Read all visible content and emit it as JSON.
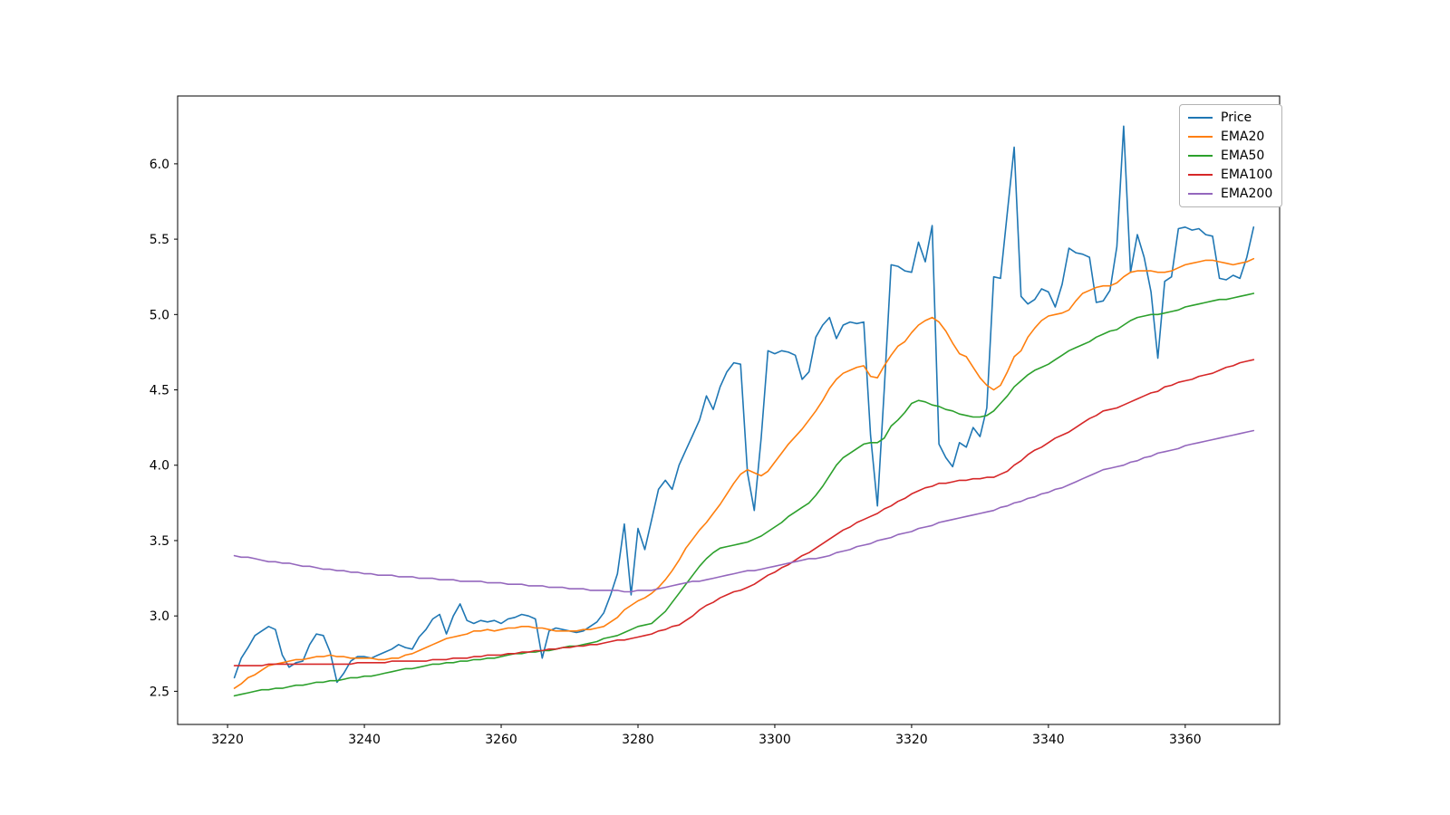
{
  "figure": {
    "background": "#ffffff",
    "frame_color": "#000000"
  },
  "chart_data": {
    "type": "line",
    "title": "",
    "xlabel": "",
    "ylabel": "",
    "grid": false,
    "legend_position": "upper right",
    "xlim": [
      3212.7,
      3373.8
    ],
    "ylim": [
      2.28,
      6.45
    ],
    "x_ticks": [
      3220,
      3240,
      3260,
      3280,
      3300,
      3320,
      3340,
      3360
    ],
    "y_ticks": [
      2.5,
      3.0,
      3.5,
      4.0,
      4.5,
      5.0,
      5.5,
      6.0
    ],
    "x_start": 3221,
    "x_step": 1,
    "series": [
      {
        "name": "Price",
        "color": "#1f77b4",
        "values": [
          2.59,
          2.72,
          2.79,
          2.87,
          2.9,
          2.93,
          2.91,
          2.74,
          2.66,
          2.69,
          2.7,
          2.81,
          2.88,
          2.87,
          2.76,
          2.56,
          2.62,
          2.7,
          2.73,
          2.73,
          2.72,
          2.74,
          2.76,
          2.78,
          2.81,
          2.79,
          2.78,
          2.86,
          2.91,
          2.98,
          3.01,
          2.88,
          3.0,
          3.08,
          2.97,
          2.95,
          2.97,
          2.96,
          2.97,
          2.95,
          2.98,
          2.99,
          3.01,
          3.0,
          2.98,
          2.72,
          2.9,
          2.92,
          2.91,
          2.9,
          2.89,
          2.9,
          2.93,
          2.96,
          3.02,
          3.14,
          3.28,
          3.61,
          3.14,
          3.58,
          3.44,
          3.64,
          3.84,
          3.9,
          3.84,
          4.0,
          4.1,
          4.2,
          4.3,
          4.46,
          4.37,
          4.52,
          4.62,
          4.68,
          4.67,
          3.95,
          3.7,
          4.18,
          4.76,
          4.74,
          4.76,
          4.75,
          4.73,
          4.57,
          4.62,
          4.85,
          4.93,
          4.98,
          4.84,
          4.93,
          4.95,
          4.94,
          4.95,
          4.2,
          3.73,
          4.5,
          5.33,
          5.32,
          5.29,
          5.28,
          5.48,
          5.35,
          5.59,
          4.14,
          4.05,
          3.99,
          4.15,
          4.12,
          4.25,
          4.19,
          4.38,
          5.25,
          5.24,
          5.68,
          6.11,
          5.12,
          5.07,
          5.1,
          5.17,
          5.15,
          5.05,
          5.2,
          5.44,
          5.41,
          5.4,
          5.38,
          5.08,
          5.09,
          5.16,
          5.45,
          6.25,
          5.28,
          5.53,
          5.38,
          5.15,
          4.71,
          5.22,
          5.25,
          5.57,
          5.58,
          5.56,
          5.57,
          5.53,
          5.52,
          5.24,
          5.23,
          5.26,
          5.24,
          5.38,
          5.58
        ]
      },
      {
        "name": "EMA20",
        "color": "#ff7f0e",
        "values": [
          2.52,
          2.55,
          2.59,
          2.61,
          2.64,
          2.67,
          2.68,
          2.69,
          2.7,
          2.71,
          2.71,
          2.72,
          2.73,
          2.73,
          2.74,
          2.73,
          2.73,
          2.72,
          2.72,
          2.72,
          2.72,
          2.71,
          2.71,
          2.72,
          2.72,
          2.74,
          2.75,
          2.77,
          2.79,
          2.81,
          2.83,
          2.85,
          2.86,
          2.87,
          2.88,
          2.9,
          2.9,
          2.91,
          2.9,
          2.91,
          2.92,
          2.92,
          2.93,
          2.93,
          2.92,
          2.92,
          2.91,
          2.9,
          2.9,
          2.9,
          2.9,
          2.91,
          2.91,
          2.92,
          2.93,
          2.96,
          2.99,
          3.04,
          3.07,
          3.1,
          3.12,
          3.15,
          3.19,
          3.24,
          3.3,
          3.37,
          3.45,
          3.51,
          3.57,
          3.62,
          3.68,
          3.74,
          3.81,
          3.88,
          3.94,
          3.97,
          3.95,
          3.93,
          3.96,
          4.02,
          4.08,
          4.14,
          4.19,
          4.24,
          4.3,
          4.36,
          4.43,
          4.51,
          4.57,
          4.61,
          4.63,
          4.65,
          4.66,
          4.59,
          4.58,
          4.66,
          4.73,
          4.79,
          4.82,
          4.88,
          4.93,
          4.96,
          4.98,
          4.95,
          4.89,
          4.81,
          4.74,
          4.72,
          4.65,
          4.58,
          4.53,
          4.5,
          4.53,
          4.62,
          4.72,
          4.76,
          4.85,
          4.91,
          4.96,
          4.99,
          5.0,
          5.01,
          5.03,
          5.09,
          5.14,
          5.16,
          5.18,
          5.19,
          5.19,
          5.21,
          5.25,
          5.28,
          5.29,
          5.29,
          5.29,
          5.28,
          5.28,
          5.29,
          5.31,
          5.33,
          5.34,
          5.35,
          5.36,
          5.36,
          5.35,
          5.34,
          5.33,
          5.34,
          5.35,
          5.37
        ]
      },
      {
        "name": "EMA50",
        "color": "#2ca02c",
        "values": [
          2.47,
          2.48,
          2.49,
          2.5,
          2.51,
          2.51,
          2.52,
          2.52,
          2.53,
          2.54,
          2.54,
          2.55,
          2.56,
          2.56,
          2.57,
          2.57,
          2.58,
          2.59,
          2.59,
          2.6,
          2.6,
          2.61,
          2.62,
          2.63,
          2.64,
          2.65,
          2.65,
          2.66,
          2.67,
          2.68,
          2.68,
          2.69,
          2.69,
          2.7,
          2.7,
          2.71,
          2.71,
          2.72,
          2.72,
          2.73,
          2.74,
          2.75,
          2.75,
          2.76,
          2.76,
          2.77,
          2.77,
          2.78,
          2.79,
          2.8,
          2.8,
          2.81,
          2.82,
          2.83,
          2.85,
          2.86,
          2.87,
          2.89,
          2.91,
          2.93,
          2.94,
          2.95,
          2.99,
          3.03,
          3.09,
          3.15,
          3.21,
          3.27,
          3.33,
          3.38,
          3.42,
          3.45,
          3.46,
          3.47,
          3.48,
          3.49,
          3.51,
          3.53,
          3.56,
          3.59,
          3.62,
          3.66,
          3.69,
          3.72,
          3.75,
          3.8,
          3.86,
          3.93,
          4.0,
          4.05,
          4.08,
          4.11,
          4.14,
          4.15,
          4.15,
          4.18,
          4.26,
          4.3,
          4.35,
          4.41,
          4.43,
          4.42,
          4.4,
          4.39,
          4.37,
          4.36,
          4.34,
          4.33,
          4.32,
          4.32,
          4.33,
          4.36,
          4.41,
          4.46,
          4.52,
          4.56,
          4.6,
          4.63,
          4.65,
          4.67,
          4.7,
          4.73,
          4.76,
          4.78,
          4.8,
          4.82,
          4.85,
          4.87,
          4.89,
          4.9,
          4.93,
          4.96,
          4.98,
          4.99,
          5.0,
          5.0,
          5.01,
          5.02,
          5.03,
          5.05,
          5.06,
          5.07,
          5.08,
          5.09,
          5.1,
          5.1,
          5.11,
          5.12,
          5.13,
          5.14
        ]
      },
      {
        "name": "EMA100",
        "color": "#d62728",
        "values": [
          2.67,
          2.67,
          2.67,
          2.67,
          2.67,
          2.68,
          2.68,
          2.68,
          2.68,
          2.68,
          2.68,
          2.68,
          2.68,
          2.68,
          2.68,
          2.68,
          2.68,
          2.68,
          2.69,
          2.69,
          2.69,
          2.69,
          2.69,
          2.7,
          2.7,
          2.7,
          2.7,
          2.7,
          2.7,
          2.71,
          2.71,
          2.71,
          2.72,
          2.72,
          2.72,
          2.73,
          2.73,
          2.74,
          2.74,
          2.74,
          2.75,
          2.75,
          2.76,
          2.76,
          2.77,
          2.77,
          2.78,
          2.78,
          2.79,
          2.79,
          2.8,
          2.8,
          2.81,
          2.81,
          2.82,
          2.83,
          2.84,
          2.84,
          2.85,
          2.86,
          2.87,
          2.88,
          2.9,
          2.91,
          2.93,
          2.94,
          2.97,
          3.0,
          3.04,
          3.07,
          3.09,
          3.12,
          3.14,
          3.16,
          3.17,
          3.19,
          3.21,
          3.24,
          3.27,
          3.29,
          3.32,
          3.34,
          3.37,
          3.4,
          3.42,
          3.45,
          3.48,
          3.51,
          3.54,
          3.57,
          3.59,
          3.62,
          3.64,
          3.66,
          3.68,
          3.71,
          3.73,
          3.76,
          3.78,
          3.81,
          3.83,
          3.85,
          3.86,
          3.88,
          3.88,
          3.89,
          3.9,
          3.9,
          3.91,
          3.91,
          3.92,
          3.92,
          3.94,
          3.96,
          4.0,
          4.03,
          4.07,
          4.1,
          4.12,
          4.15,
          4.18,
          4.2,
          4.22,
          4.25,
          4.28,
          4.31,
          4.33,
          4.36,
          4.37,
          4.38,
          4.4,
          4.42,
          4.44,
          4.46,
          4.48,
          4.49,
          4.52,
          4.53,
          4.55,
          4.56,
          4.57,
          4.59,
          4.6,
          4.61,
          4.63,
          4.65,
          4.66,
          4.68,
          4.69,
          4.7
        ]
      },
      {
        "name": "EMA200",
        "color": "#9467bd",
        "values": [
          3.4,
          3.39,
          3.39,
          3.38,
          3.37,
          3.36,
          3.36,
          3.35,
          3.35,
          3.34,
          3.33,
          3.33,
          3.32,
          3.31,
          3.31,
          3.3,
          3.3,
          3.29,
          3.29,
          3.28,
          3.28,
          3.27,
          3.27,
          3.27,
          3.26,
          3.26,
          3.26,
          3.25,
          3.25,
          3.25,
          3.24,
          3.24,
          3.24,
          3.23,
          3.23,
          3.23,
          3.23,
          3.22,
          3.22,
          3.22,
          3.21,
          3.21,
          3.21,
          3.2,
          3.2,
          3.2,
          3.19,
          3.19,
          3.19,
          3.18,
          3.18,
          3.18,
          3.17,
          3.17,
          3.17,
          3.17,
          3.17,
          3.16,
          3.16,
          3.17,
          3.17,
          3.17,
          3.18,
          3.19,
          3.2,
          3.21,
          3.22,
          3.23,
          3.23,
          3.24,
          3.25,
          3.26,
          3.27,
          3.28,
          3.29,
          3.3,
          3.3,
          3.31,
          3.32,
          3.33,
          3.34,
          3.35,
          3.36,
          3.37,
          3.38,
          3.38,
          3.39,
          3.4,
          3.42,
          3.43,
          3.44,
          3.46,
          3.47,
          3.48,
          3.5,
          3.51,
          3.52,
          3.54,
          3.55,
          3.56,
          3.58,
          3.59,
          3.6,
          3.62,
          3.63,
          3.64,
          3.65,
          3.66,
          3.67,
          3.68,
          3.69,
          3.7,
          3.72,
          3.73,
          3.75,
          3.76,
          3.78,
          3.79,
          3.81,
          3.82,
          3.84,
          3.85,
          3.87,
          3.89,
          3.91,
          3.93,
          3.95,
          3.97,
          3.98,
          3.99,
          4.0,
          4.02,
          4.03,
          4.05,
          4.06,
          4.08,
          4.09,
          4.1,
          4.11,
          4.13,
          4.14,
          4.15,
          4.16,
          4.17,
          4.18,
          4.19,
          4.2,
          4.21,
          4.22,
          4.23
        ]
      }
    ]
  }
}
